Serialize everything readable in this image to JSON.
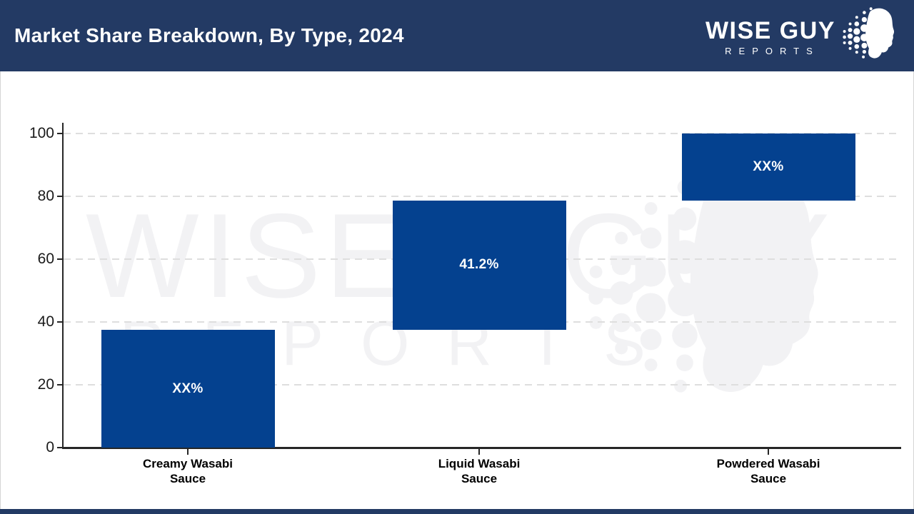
{
  "header": {
    "title": "Market Share Breakdown, By Type, 2024",
    "brand": {
      "name": "WISE GUY",
      "subtitle": "REPORTS"
    }
  },
  "watermark": {
    "line1": "WISE GUY",
    "line2": "REPORTS"
  },
  "chart_data": {
    "type": "bar",
    "subtype": "floating-segment-waterfall",
    "title": "Market Share Breakdown, By Type, 2024",
    "categories": [
      "Creamy Wasabi Sauce",
      "Liquid Wasabi Sauce",
      "Powdered Wasabi Sauce"
    ],
    "category_lines": [
      [
        "Creamy Wasabi",
        "Sauce"
      ],
      [
        "Liquid Wasabi",
        "Sauce"
      ],
      [
        "Powdered Wasabi",
        "Sauce"
      ]
    ],
    "segments": [
      {
        "category": "Creamy Wasabi Sauce",
        "start": 0,
        "end": 37.5,
        "share_pct": 37.5,
        "label": "XX%"
      },
      {
        "category": "Liquid Wasabi Sauce",
        "start": 37.5,
        "end": 78.7,
        "share_pct": 41.2,
        "label": "41.2%"
      },
      {
        "category": "Powdered Wasabi Sauce",
        "start": 78.7,
        "end": 100,
        "share_pct": 21.3,
        "label": "XX%"
      }
    ],
    "xlabel": "",
    "ylabel": "",
    "y_ticks": [
      0,
      20,
      40,
      60,
      80,
      100
    ],
    "ylim": [
      0,
      103.5
    ],
    "grid": "horizontal dashed",
    "legend": "none",
    "bar_color": "#04418f",
    "bar_label_color": "#ffffff"
  },
  "colors": {
    "header_bg": "#233a64",
    "footer_bg": "#233a64",
    "bar": "#04418f",
    "axis": "#262626",
    "grid": "#dedede",
    "tick_label": "#1a1a1a",
    "watermark": "#f2f2f4",
    "canvas_bg": "#ffffff"
  }
}
